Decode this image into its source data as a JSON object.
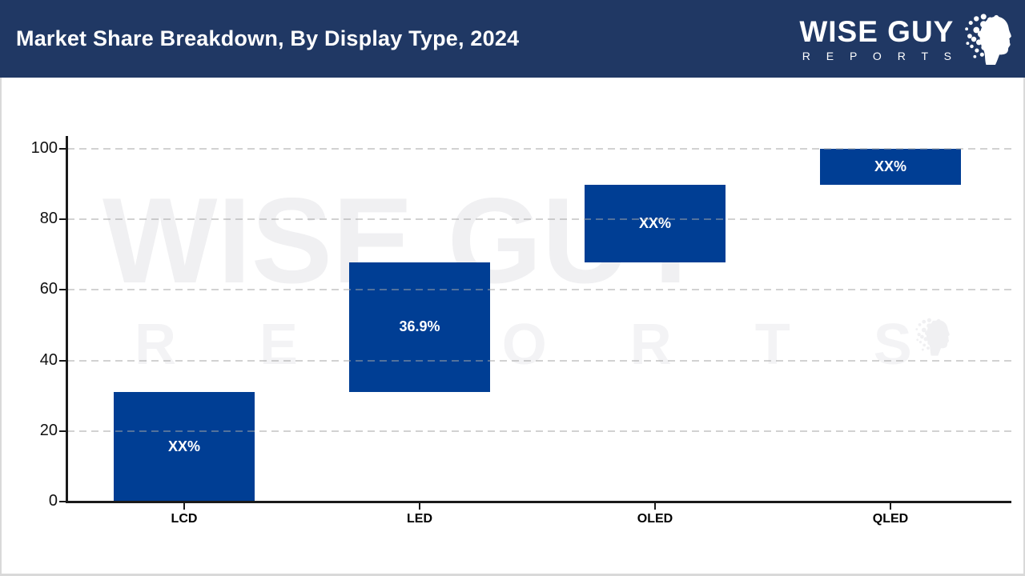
{
  "header": {
    "title": "Market Share Breakdown, By Display Type, 2024",
    "bg_color": "#203864",
    "logo": {
      "line1": "WISE GUY",
      "line2": "R E P O R T S"
    }
  },
  "watermark": {
    "line1": "WISE GUY",
    "line2": "R E P O R T S"
  },
  "chart_data": {
    "type": "bar",
    "subtype": "waterfall",
    "title": "Market Share Breakdown, By Display Type, 2024",
    "categories": [
      "LCD",
      "LED",
      "OLED",
      "QLED"
    ],
    "segments": [
      {
        "category": "LCD",
        "start": 0,
        "end": 31,
        "label": "XX%"
      },
      {
        "category": "LED",
        "start": 31,
        "end": 67.9,
        "label": "36.9%"
      },
      {
        "category": "OLED",
        "start": 67.9,
        "end": 89.9,
        "label": "XX%"
      },
      {
        "category": "QLED",
        "start": 89.9,
        "end": 100,
        "label": "XX%"
      }
    ],
    "yticks": [
      0,
      20,
      40,
      60,
      80,
      100
    ],
    "ylim": [
      0,
      103.5
    ],
    "xlabel": "",
    "ylabel": "",
    "grid": "horizontal-dashed",
    "legend": "none",
    "bar_color": "#003e94",
    "bar_label_color": "#ffffff"
  }
}
